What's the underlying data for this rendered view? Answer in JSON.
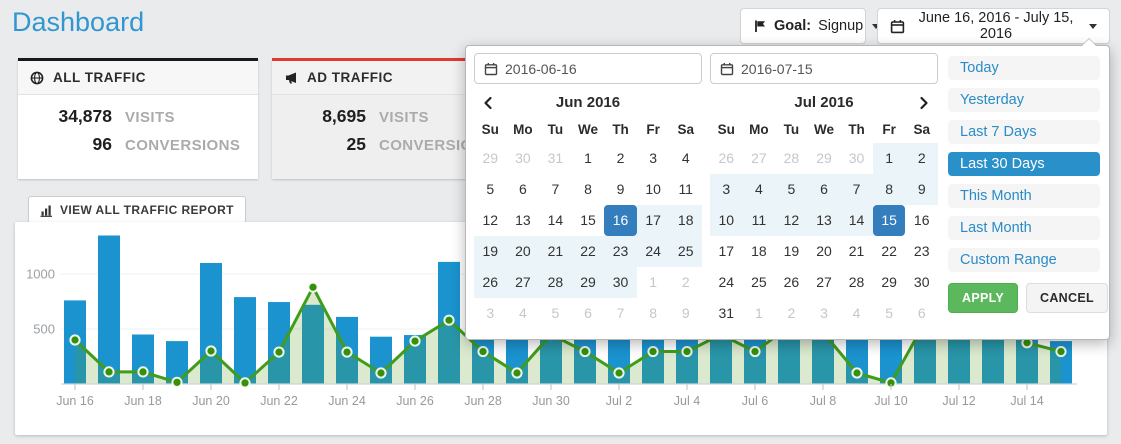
{
  "page": {
    "title": "Dashboard"
  },
  "header": {
    "goal_button": {
      "prefix": "Goal:",
      "value": "Signup"
    },
    "date_range_button": {
      "label": "June 16, 2016 - July 15, 2016"
    }
  },
  "cards": [
    {
      "title": "ALL TRAFFIC",
      "icon": "globe-icon",
      "accent_color": "#1a1a1a",
      "active": true,
      "stats": [
        {
          "value": "34,878",
          "label": "VISITS"
        },
        {
          "value": "96",
          "label": "CONVERSIONS"
        }
      ]
    },
    {
      "title": "AD TRAFFIC",
      "icon": "megaphone-icon",
      "accent_color": "#e03a2f",
      "active": false,
      "stats": [
        {
          "value": "8,695",
          "label": "VISITS"
        },
        {
          "value": "25",
          "label": "CONVERSIONS"
        }
      ]
    }
  ],
  "report_button": {
    "label": "VIEW ALL TRAFFIC REPORT",
    "icon": "bar-chart-icon"
  },
  "chart_data": {
    "type": "bar",
    "x": [
      "Jun 16",
      "Jun 17",
      "Jun 18",
      "Jun 19",
      "Jun 20",
      "Jun 21",
      "Jun 22",
      "Jun 23",
      "Jun 24",
      "Jun 25",
      "Jun 26",
      "Jun 27",
      "Jun 28",
      "Jun 29",
      "Jun 30",
      "Jul 1",
      "Jul 2",
      "Jul 3",
      "Jul 4",
      "Jul 5",
      "Jul 6",
      "Jul 7",
      "Jul 8",
      "Jul 9",
      "Jul 10",
      "Jul 11",
      "Jul 12",
      "Jul 13",
      "Jul 14",
      "Jul 15"
    ],
    "x_ticks_shown": [
      "Jun 16",
      "Jun 18",
      "Jun 20",
      "Jun 22",
      "Jun 24",
      "Jun 26",
      "Jun 28",
      "Jun 30",
      "Jul 2",
      "Jul 4",
      "Jul 6",
      "Jul 8",
      "Jul 10",
      "Jul 12",
      "Jul 14"
    ],
    "ylim": [
      0,
      1450
    ],
    "yticks": [
      500,
      1000
    ],
    "grid": true,
    "legend_position": "none",
    "series": [
      {
        "name": "visits",
        "type": "bar",
        "color": "#1b93cf",
        "values": [
          760,
          1350,
          450,
          390,
          1100,
          790,
          745,
          720,
          610,
          430,
          445,
          1110,
          800,
          650,
          700,
          850,
          600,
          700,
          750,
          900,
          650,
          700,
          800,
          600,
          550,
          700,
          650,
          600,
          500,
          390
        ]
      },
      {
        "name": "conversions",
        "type": "line",
        "color": "#3f9c1c",
        "marker_color": "#359108",
        "area_fill": "rgba(90,160,30,0.22)",
        "values": [
          400,
          110,
          110,
          15,
          300,
          10,
          290,
          880,
          290,
          100,
          390,
          580,
          295,
          100,
          450,
          295,
          100,
          295,
          295,
          450,
          295,
          520,
          470,
          100,
          10,
          560,
          700,
          560,
          375,
          295
        ]
      }
    ]
  },
  "datepicker": {
    "start_input": "2016-06-16",
    "end_input": "2016-07-15",
    "weekdays": [
      "Su",
      "Mo",
      "Tu",
      "We",
      "Th",
      "Fr",
      "Sa"
    ],
    "cell_states": {
      "m": "other-month",
      "r": "in-range",
      "s": "selected-endpoint"
    },
    "calendars": [
      {
        "month": "Jun 2016",
        "has_prev": true,
        "has_next": false,
        "weeks": [
          [
            "29m",
            "30m",
            "31m",
            "1",
            "2",
            "3",
            "4"
          ],
          [
            "5",
            "6",
            "7",
            "8",
            "9",
            "10",
            "11"
          ],
          [
            "12",
            "13",
            "14",
            "15",
            "16s",
            "17r",
            "18r"
          ],
          [
            "19r",
            "20r",
            "21r",
            "22r",
            "23r",
            "24r",
            "25r"
          ],
          [
            "26r",
            "27r",
            "28r",
            "29r",
            "30r",
            "1m",
            "2m"
          ],
          [
            "3m",
            "4m",
            "5m",
            "6m",
            "7m",
            "8m",
            "9m"
          ]
        ]
      },
      {
        "month": "Jul 2016",
        "has_prev": false,
        "has_next": true,
        "weeks": [
          [
            "26m",
            "27m",
            "28m",
            "29m",
            "30m",
            "1r",
            "2r"
          ],
          [
            "3r",
            "4r",
            "5r",
            "6r",
            "7r",
            "8r",
            "9r"
          ],
          [
            "10r",
            "11r",
            "12r",
            "13r",
            "14r",
            "15s",
            "16"
          ],
          [
            "17",
            "18",
            "19",
            "20",
            "21",
            "22",
            "23"
          ],
          [
            "24",
            "25",
            "26",
            "27",
            "28",
            "29",
            "30"
          ],
          [
            "31",
            "1m",
            "2m",
            "3m",
            "4m",
            "5m",
            "6m"
          ]
        ]
      }
    ],
    "ranges": [
      {
        "label": "Today",
        "active": false
      },
      {
        "label": "Yesterday",
        "active": false
      },
      {
        "label": "Last 7 Days",
        "active": false
      },
      {
        "label": "Last 30 Days",
        "active": true
      },
      {
        "label": "This Month",
        "active": false
      },
      {
        "label": "Last Month",
        "active": false
      },
      {
        "label": "Custom Range",
        "active": false
      }
    ],
    "apply_label": "APPLY",
    "cancel_label": "CANCEL"
  }
}
